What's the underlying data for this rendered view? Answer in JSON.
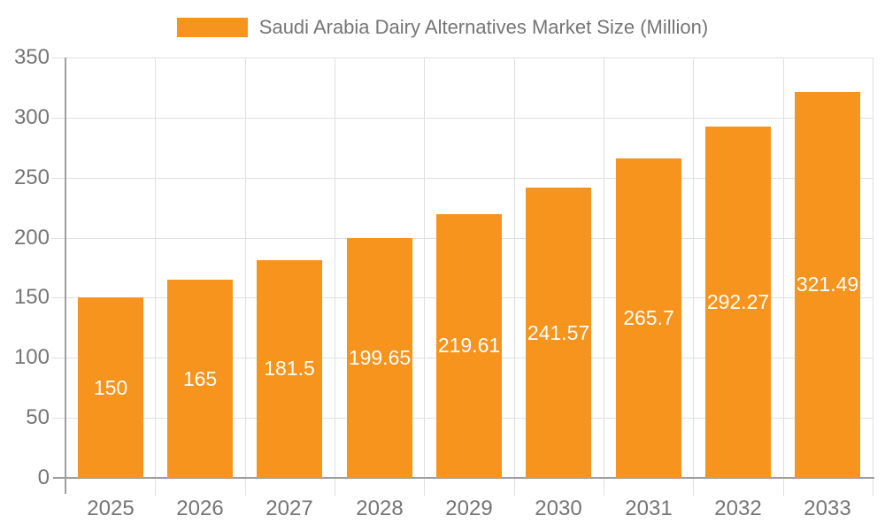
{
  "chart_data": {
    "type": "bar",
    "title": "Saudi Arabia Dairy Alternatives Market Size (Million)",
    "categories": [
      "2025",
      "2026",
      "2027",
      "2028",
      "2029",
      "2030",
      "2031",
      "2032",
      "2033"
    ],
    "series": [
      {
        "name": "Saudi Arabia Dairy Alternatives Market Size (Million)",
        "values": [
          150,
          165,
          181.5,
          199.65,
          219.61,
          241.57,
          265.7,
          292.27,
          321.49
        ],
        "value_labels": [
          "150",
          "165",
          "181.5",
          "199.65",
          "219.61",
          "241.57",
          "265.7",
          "292.27",
          "321.49"
        ]
      }
    ],
    "xlabel": "",
    "ylabel": "",
    "ylim": [
      0,
      350
    ],
    "ytick_step": 50,
    "ytick_labels": [
      "0",
      "50",
      "100",
      "150",
      "200",
      "250",
      "300",
      "350"
    ],
    "grid": true,
    "legend_position": "top",
    "colors": {
      "bar": "#f7941e",
      "value_label": "#ffffff",
      "axis_text": "#757575",
      "legend_text": "#757575",
      "gridline": "#e0e0e0",
      "axis_line": "#9e9e9e",
      "background": "#ffffff"
    }
  }
}
